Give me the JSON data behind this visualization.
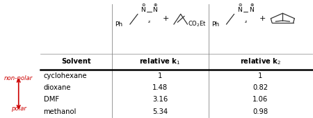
{
  "solvents": [
    "cyclohexane",
    "dioxane",
    "DMF",
    "methanol"
  ],
  "k1_values": [
    "1",
    "1.48",
    "3.16",
    "5.34"
  ],
  "k2_values": [
    "1",
    "0.82",
    "1.06",
    "0.98"
  ],
  "col_header_solvent": "Solvent",
  "col_header_k1": "relative k$_1$",
  "col_header_k2": "relative k$_2$",
  "label_nonpolar": "non-polar",
  "label_polar": "polar",
  "bg_color": "#ffffff",
  "header_line_color": "#000000",
  "text_color": "#000000",
  "red_color": "#cc0000",
  "col_divider_color": "#888888"
}
